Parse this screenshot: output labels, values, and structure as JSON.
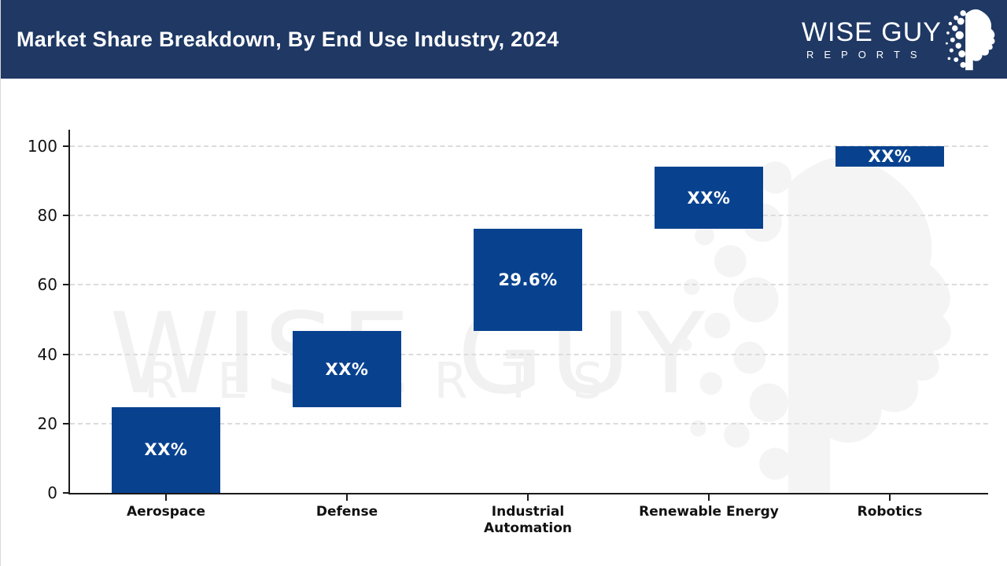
{
  "header": {
    "title": "Market Share Breakdown, By End Use Industry, 2024",
    "logo": {
      "wordmark": "WISE GUY",
      "subtext": "REPORTS"
    }
  },
  "watermark": {
    "wordmark": "WISE GUY",
    "subtext": "REPORTS"
  },
  "colors": {
    "header_bg": "#1f3864",
    "bar_fill": "#08428f",
    "axis": "#1a1a1a",
    "tick_label": "#111111",
    "gridline": "#dcdcdc",
    "bar_label": "#ffffff",
    "title_text": "#ffffff",
    "watermark": "#f1f1f1",
    "frame_border": "#d9d9d9"
  },
  "chart_data": {
    "type": "bar",
    "subtype": "waterfall (floating segments accumulating to 100%)",
    "title": "Market Share Breakdown, By End Use Industry, 2024",
    "xlabel": "",
    "ylabel": "",
    "ylim": [
      0,
      105
    ],
    "yticks": [
      0,
      20,
      40,
      60,
      80,
      100
    ],
    "grid": "horizontal dashed gridlines",
    "legend": "none",
    "categories": [
      "Aerospace",
      "Defense",
      "Industrial Automation",
      "Renewable Energy",
      "Robotics"
    ],
    "category_display_lines": [
      [
        "Aerospace"
      ],
      [
        "Defense"
      ],
      [
        "Industrial",
        "Automation"
      ],
      [
        "Renewable Energy"
      ],
      [
        "Robotics"
      ]
    ],
    "values": [
      24.8,
      21.8,
      29.6,
      17.8,
      6.0
    ],
    "cumulative_ranges": [
      [
        0,
        24.8
      ],
      [
        24.8,
        46.6
      ],
      [
        46.6,
        76.2
      ],
      [
        76.2,
        94.0
      ],
      [
        94.0,
        100.0
      ]
    ],
    "bar_labels": [
      "XX%",
      "XX%",
      "29.6%",
      "XX%",
      "XX%"
    ]
  }
}
